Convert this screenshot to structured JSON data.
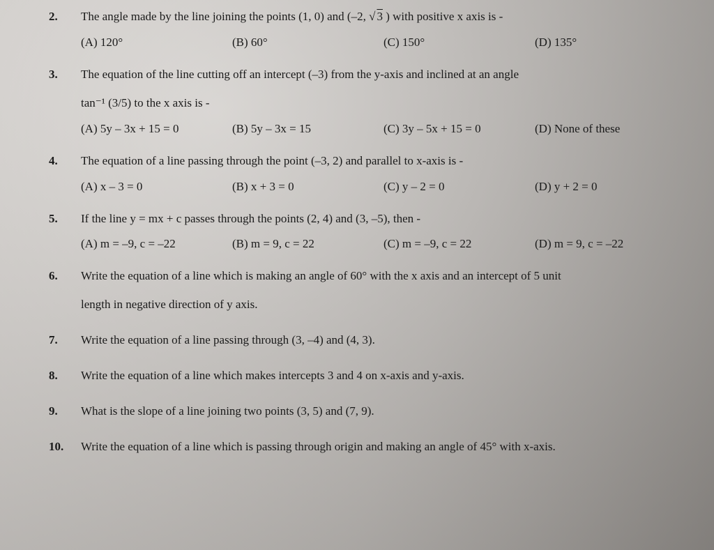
{
  "questions": [
    {
      "num": "2.",
      "text_parts": [
        "The angle made by the line joining the points (1, 0) and (–2, ",
        "3",
        " ) with positive x axis is -"
      ],
      "has_sqrt": true,
      "options": [
        "(A) 120°",
        "(B) 60°",
        "(C) 150°",
        "(D) 135°"
      ]
    },
    {
      "num": "3.",
      "text": "The equation of the line cutting off an intercept (–3) from the y-axis and inclined at an angle",
      "text_line2": "tan⁻¹ (3/5) to the x axis is -",
      "options": [
        "(A) 5y – 3x + 15 = 0",
        "(B) 5y – 3x = 15",
        "(C) 3y – 5x + 15 = 0",
        "(D) None of these"
      ]
    },
    {
      "num": "4.",
      "text": "The equation of a line passing through the point (–3, 2) and parallel to x-axis is -",
      "options": [
        "(A) x – 3 = 0",
        "(B) x + 3 = 0",
        "(C) y – 2 = 0",
        "(D) y + 2 = 0"
      ]
    },
    {
      "num": "5.",
      "text": "If the line y = mx + c passes through the points (2, 4) and (3, –5), then -",
      "options": [
        "(A) m = –9, c = –22",
        "(B) m = 9, c = 22",
        "(C) m = –9, c = 22",
        "(D) m = 9, c = –22"
      ]
    },
    {
      "num": "6.",
      "text": "Write the equation of a line which is making an angle of 60° with the x axis and an intercept of 5 unit",
      "text_line2": "length in negative direction of y axis."
    },
    {
      "num": "7.",
      "text": "Write the equation of a line passing through (3, –4) and (4, 3)."
    },
    {
      "num": "8.",
      "text": "Write the equation of a line which makes intercepts 3 and 4 on x-axis and y-axis."
    },
    {
      "num": "9.",
      "text": "What is the slope of a line joining two points (3, 5) and (7, 9)."
    },
    {
      "num": "10.",
      "text": "Write the equation of a line which is passing through origin and making an angle of 45° with x-axis."
    }
  ]
}
